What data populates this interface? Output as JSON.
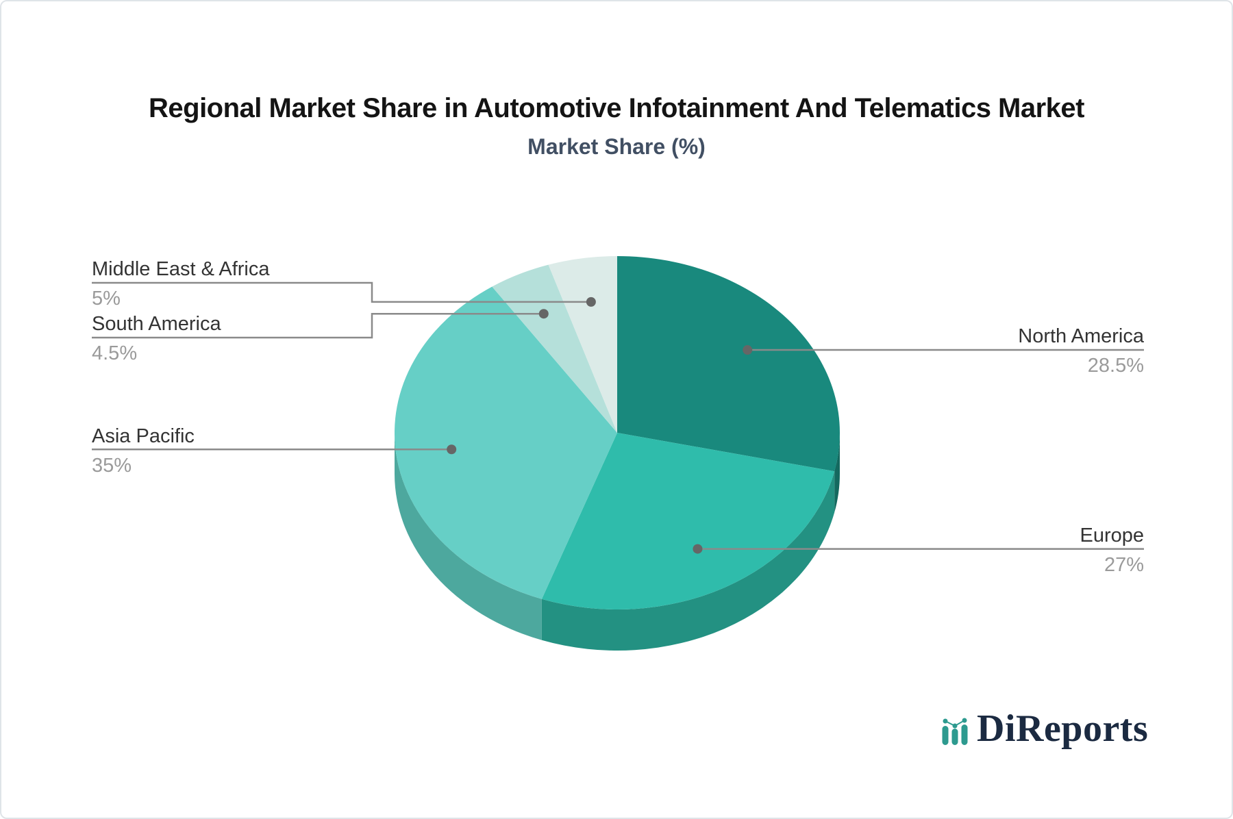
{
  "chart_data": {
    "type": "pie",
    "title": "Regional Market Share in Automotive Infotainment And Telematics Market",
    "subtitle": "Market Share (%)",
    "unit": "%",
    "direction": "clockwise",
    "start_angle_deg": 0,
    "effect_3d": true,
    "labels_outside": true,
    "segments": [
      {
        "label": "North America",
        "value": 28.5,
        "display": "28.5%",
        "color": "#19897d",
        "side_color": "#14695f"
      },
      {
        "label": "Europe",
        "value": 27,
        "display": "27%",
        "color": "#2fbcab",
        "side_color": "#239182"
      },
      {
        "label": "Asia Pacific",
        "value": 35,
        "display": "35%",
        "color": "#66cfc6",
        "side_color": "#4da89e"
      },
      {
        "label": "South America",
        "value": 4.5,
        "display": "4.5%",
        "color": "#b5e0da",
        "side_color": "#8fc2ba"
      },
      {
        "label": "Middle East & Africa",
        "value": 5,
        "display": "5%",
        "color": "#dcebe8",
        "side_color": "#b9d2ce"
      }
    ],
    "leader_lines": {
      "line_color": "#8a8a8a",
      "dot_color": "#666666"
    }
  },
  "branding": {
    "logo_text": "DiReports",
    "logo_icon": "bar-line-chart-icon",
    "text_color": "#1b2a41",
    "accent_color": "#2d9a8f"
  }
}
